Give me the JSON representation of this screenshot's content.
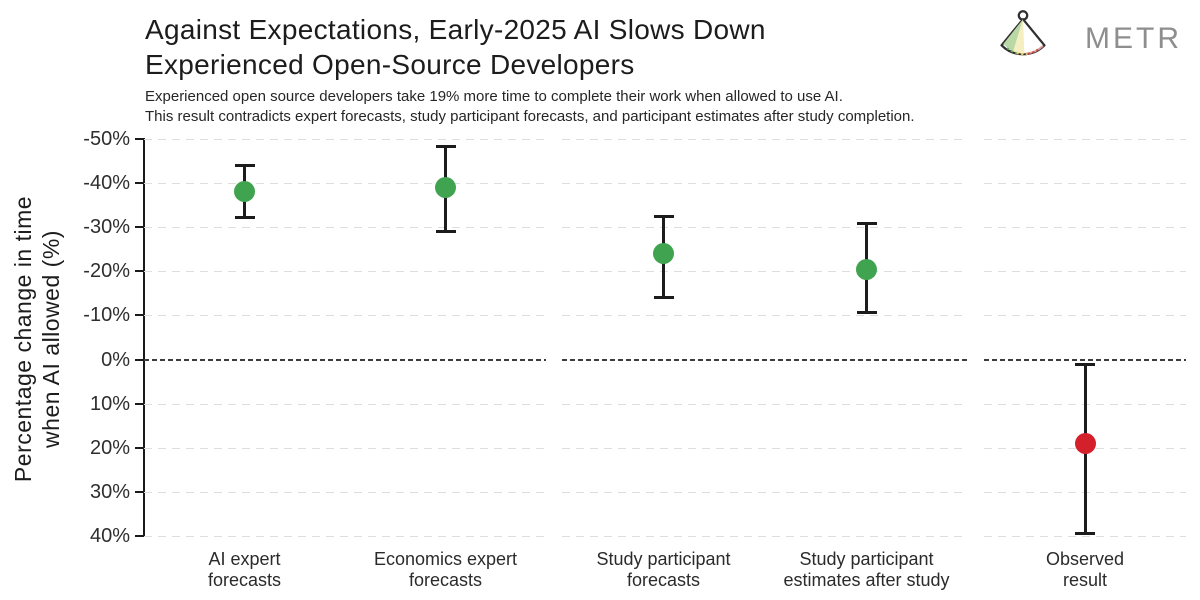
{
  "header": {
    "title_line1": "Against Expectations, Early-2025 AI Slows Down",
    "title_line2": "Experienced Open-Source Developers",
    "subtitle_line1": "Experienced open source developers take 19% more time to complete their work when allowed to use AI.",
    "subtitle_line2": "This result contradicts expert forecasts, study participant forecasts, and participant estimates after study completion.",
    "brand": "METR"
  },
  "chart_data": {
    "type": "scatter",
    "variant": "points-with-error-bars",
    "title": "Against Expectations, Early-2025 AI Slows Down Experienced Open-Source Developers",
    "ylabel_line1": "Percentage change in time",
    "ylabel_line2": "when AI allowed (%)",
    "y_axis": {
      "min": -50,
      "max": 40,
      "inverted_orientation": "negative values at top",
      "ticks": [
        -50,
        -40,
        -30,
        -20,
        -10,
        0,
        10,
        20,
        30,
        40
      ],
      "tick_suffix": "%",
      "grid": "dashed horizontal lines at every 10%",
      "zero_line": true
    },
    "colors": {
      "forecast_point": "#3fa34f",
      "observed_point": "#d4202a",
      "error_bar": "#1c1c1c"
    },
    "panels": [
      {
        "points": [
          {
            "category_line1": "AI expert",
            "category_line2": "forecasts",
            "value": -38,
            "ci_low": -44,
            "ci_high": -32,
            "color_key": "forecast_point"
          },
          {
            "category_line1": "Economics expert",
            "category_line2": "forecasts",
            "value": -39,
            "ci_low": -48.5,
            "ci_high": -29,
            "color_key": "forecast_point"
          }
        ]
      },
      {
        "points": [
          {
            "category_line1": "Study participant",
            "category_line2": "forecasts",
            "value": -24,
            "ci_low": -32.5,
            "ci_high": -14,
            "color_key": "forecast_point"
          },
          {
            "category_line1": "Study participant",
            "category_line2": "estimates after study",
            "value": -20.5,
            "ci_low": -31,
            "ci_high": -10.5,
            "color_key": "forecast_point"
          }
        ]
      },
      {
        "points": [
          {
            "category_line1": "Observed",
            "category_line2": "result",
            "value": 19,
            "ci_low": 1,
            "ci_high": 39.5,
            "color_key": "observed_point"
          }
        ]
      }
    ]
  }
}
